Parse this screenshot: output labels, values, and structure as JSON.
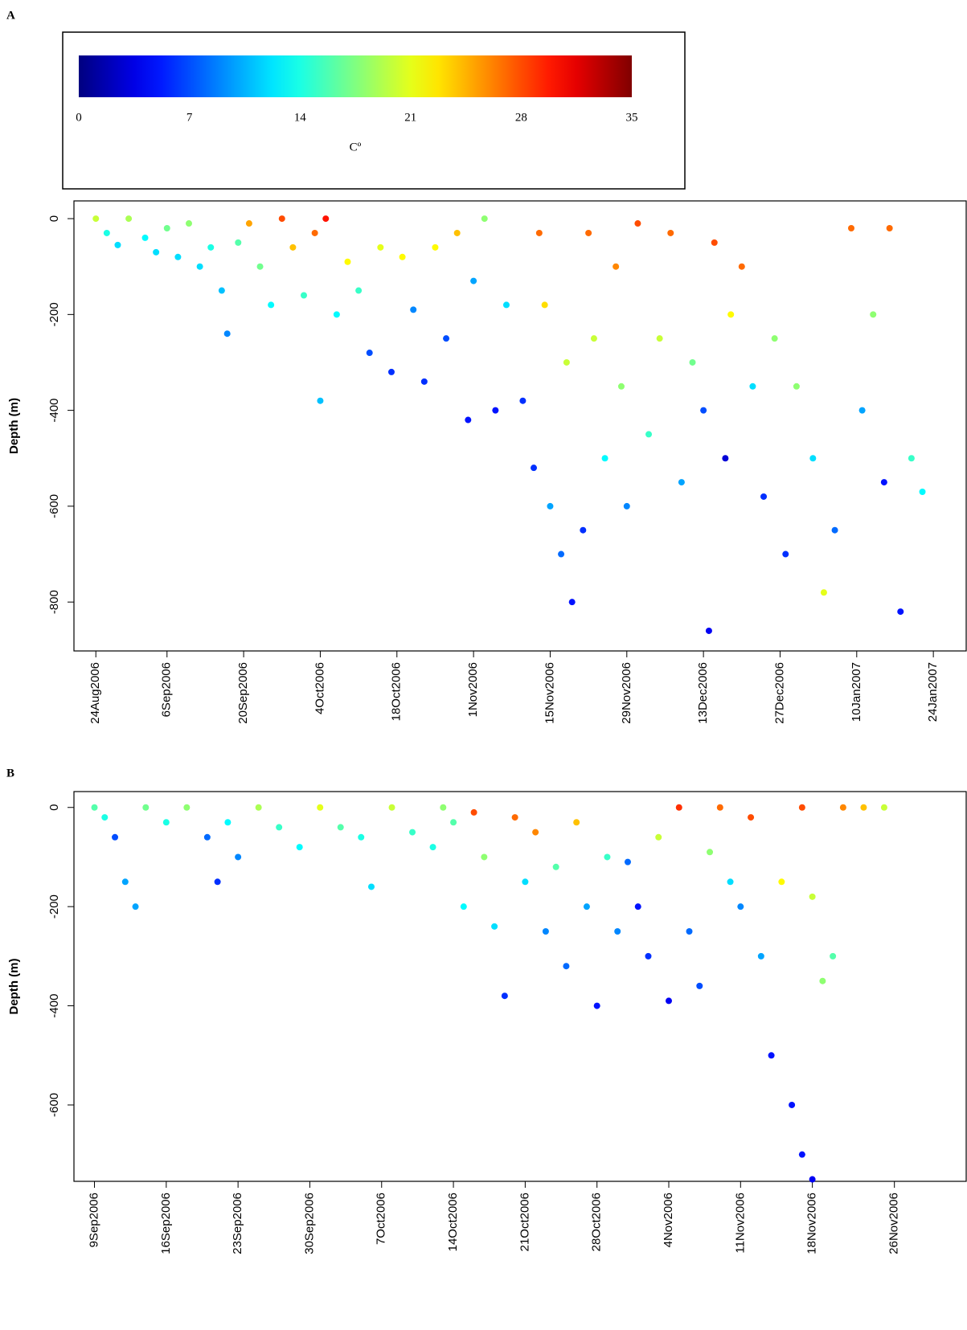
{
  "chart_data": [
    {
      "type": "scatter",
      "panel": "A",
      "ylabel": "Depth  (m)",
      "colorbar": {
        "label": "Cº",
        "clim": [
          0,
          35
        ],
        "ticks": [
          0,
          7,
          14,
          21,
          28,
          35
        ]
      },
      "xlim": [
        "2006-08-20",
        "2007-01-30"
      ],
      "ylim": [
        -902,
        37
      ],
      "yticks": [
        0,
        -200,
        -400,
        -600,
        -800
      ],
      "xticks": [
        {
          "value": "2006-08-24",
          "label": "24Aug2006"
        },
        {
          "value": "2006-09-06",
          "label": "6Sep2006"
        },
        {
          "value": "2006-09-20",
          "label": "20Sep2006"
        },
        {
          "value": "2006-10-04",
          "label": "4Oct2006"
        },
        {
          "value": "2006-10-18",
          "label": "18Oct2006"
        },
        {
          "value": "2006-11-01",
          "label": "1Nov2006"
        },
        {
          "value": "2006-11-15",
          "label": "15Nov2006"
        },
        {
          "value": "2006-11-29",
          "label": "29Nov2006"
        },
        {
          "value": "2006-12-13",
          "label": "13Dec2006"
        },
        {
          "value": "2006-12-27",
          "label": "27Dec2006"
        },
        {
          "value": "2007-01-10",
          "label": "10Jan2007"
        },
        {
          "value": "2007-01-24",
          "label": "24Jan2007"
        }
      ],
      "x": [
        "2006-08-24",
        "2006-08-26",
        "2006-08-28",
        "2006-08-30",
        "2006-09-02",
        "2006-09-04",
        "2006-09-06",
        "2006-09-08",
        "2006-09-10",
        "2006-09-12",
        "2006-09-14",
        "2006-09-16",
        "2006-09-17",
        "2006-09-19",
        "2006-09-21",
        "2006-09-23",
        "2006-09-25",
        "2006-09-27",
        "2006-09-29",
        "2006-10-01",
        "2006-10-03",
        "2006-10-04",
        "2006-10-05",
        "2006-10-07",
        "2006-10-09",
        "2006-10-11",
        "2006-10-13",
        "2006-10-15",
        "2006-10-17",
        "2006-10-19",
        "2006-10-21",
        "2006-10-23",
        "2006-10-25",
        "2006-10-27",
        "2006-10-29",
        "2006-10-31",
        "2006-11-01",
        "2006-11-03",
        "2006-11-05",
        "2006-11-07",
        "2006-11-10",
        "2006-11-12",
        "2006-11-13",
        "2006-11-14",
        "2006-11-15",
        "2006-11-17",
        "2006-11-18",
        "2006-11-19",
        "2006-11-21",
        "2006-11-22",
        "2006-11-23",
        "2006-11-25",
        "2006-11-27",
        "2006-11-28",
        "2006-11-29",
        "2006-12-01",
        "2006-12-03",
        "2006-12-05",
        "2006-12-07",
        "2006-12-09",
        "2006-12-11",
        "2006-12-13",
        "2006-12-14",
        "2006-12-15",
        "2006-12-17",
        "2006-12-18",
        "2006-12-20",
        "2006-12-22",
        "2006-12-24",
        "2006-12-26",
        "2006-12-28",
        "2006-12-30",
        "2007-01-02",
        "2007-01-04",
        "2007-01-06",
        "2007-01-09",
        "2007-01-11",
        "2007-01-13",
        "2007-01-15",
        "2007-01-16",
        "2007-01-18",
        "2007-01-20",
        "2007-01-22"
      ],
      "y": [
        0,
        -30,
        -55,
        0,
        -40,
        -70,
        -20,
        -80,
        -10,
        -100,
        -60,
        -150,
        -240,
        -50,
        -10,
        -100,
        -180,
        0,
        -60,
        -160,
        -30,
        -380,
        0,
        -200,
        -90,
        -150,
        -280,
        -60,
        -320,
        -80,
        -190,
        -340,
        -60,
        -250,
        -30,
        -420,
        -130,
        0,
        -400,
        -180,
        -380,
        -520,
        -30,
        -180,
        -600,
        -700,
        -300,
        -800,
        -650,
        -30,
        -250,
        -500,
        -100,
        -350,
        -600,
        -10,
        -450,
        -250,
        -30,
        -550,
        -300,
        -400,
        -860,
        -50,
        -500,
        -200,
        -100,
        -350,
        -580,
        -250,
        -700,
        -350,
        -500,
        -780,
        -650,
        -20,
        -400,
        -200,
        -550,
        -20,
        -820,
        -500,
        -570
      ],
      "temperature": [
        20,
        14,
        12,
        19,
        13,
        12,
        17,
        12,
        18,
        12,
        14,
        11,
        9,
        16,
        25,
        17,
        13,
        28,
        24,
        15,
        27,
        11,
        30,
        13,
        22,
        15,
        7,
        21,
        6,
        22,
        9,
        6,
        22,
        7,
        24,
        5,
        10,
        18,
        5,
        12,
        6,
        6,
        27,
        23,
        10,
        8,
        20,
        5,
        6,
        27,
        20,
        13,
        26,
        18,
        9,
        28,
        15,
        20,
        27,
        10,
        17,
        7,
        4,
        28,
        3,
        22,
        27,
        12,
        6,
        18,
        6,
        18,
        12,
        21,
        8,
        27,
        10,
        18,
        5,
        27,
        5,
        15,
        13
      ]
    },
    {
      "type": "scatter",
      "panel": "B",
      "ylabel": "Depth  (m)",
      "xlim": [
        "2006-09-07",
        "2006-12-03"
      ],
      "ylim": [
        -754,
        32
      ],
      "yticks": [
        0,
        -200,
        -400,
        -600
      ],
      "xticks": [
        {
          "value": "2006-09-09",
          "label": "9Sep2006"
        },
        {
          "value": "2006-09-16",
          "label": "16Sep2006"
        },
        {
          "value": "2006-09-23",
          "label": "23Sep2006"
        },
        {
          "value": "2006-09-30",
          "label": "30Sep2006"
        },
        {
          "value": "2006-10-07",
          "label": "7Oct2006"
        },
        {
          "value": "2006-10-14",
          "label": "14Oct2006"
        },
        {
          "value": "2006-10-21",
          "label": "21Oct2006"
        },
        {
          "value": "2006-10-28",
          "label": "28Oct2006"
        },
        {
          "value": "2006-11-04",
          "label": "4Nov2006"
        },
        {
          "value": "2006-11-11",
          "label": "11Nov2006"
        },
        {
          "value": "2006-11-18",
          "label": "18Nov2006"
        },
        {
          "value": "2006-11-26",
          "label": "26Nov2006"
        }
      ],
      "x": [
        "2006-09-09",
        "2006-09-10",
        "2006-09-11",
        "2006-09-12",
        "2006-09-13",
        "2006-09-14",
        "2006-09-16",
        "2006-09-18",
        "2006-09-20",
        "2006-09-21",
        "2006-09-22",
        "2006-09-23",
        "2006-09-25",
        "2006-09-27",
        "2006-09-29",
        "2006-10-01",
        "2006-10-03",
        "2006-10-05",
        "2006-10-06",
        "2006-10-08",
        "2006-10-10",
        "2006-10-12",
        "2006-10-13",
        "2006-10-14",
        "2006-10-15",
        "2006-10-16",
        "2006-10-17",
        "2006-10-18",
        "2006-10-19",
        "2006-10-20",
        "2006-10-21",
        "2006-10-22",
        "2006-10-23",
        "2006-10-24",
        "2006-10-25",
        "2006-10-26",
        "2006-10-27",
        "2006-10-28",
        "2006-10-29",
        "2006-10-30",
        "2006-10-31",
        "2006-11-01",
        "2006-11-02",
        "2006-11-03",
        "2006-11-04",
        "2006-11-05",
        "2006-11-06",
        "2006-11-07",
        "2006-11-08",
        "2006-11-09",
        "2006-11-10",
        "2006-11-11",
        "2006-11-12",
        "2006-11-13",
        "2006-11-14",
        "2006-11-15",
        "2006-11-16",
        "2006-11-17",
        "2006-11-17",
        "2006-11-18",
        "2006-11-18",
        "2006-11-19",
        "2006-11-20",
        "2006-11-21",
        "2006-11-23",
        "2006-11-25"
      ],
      "y": [
        0,
        -20,
        -60,
        -150,
        -200,
        0,
        -30,
        0,
        -60,
        -150,
        -30,
        -100,
        0,
        -40,
        -80,
        0,
        -40,
        -60,
        -160,
        0,
        -50,
        -80,
        0,
        -30,
        -200,
        -10,
        -100,
        -240,
        -380,
        -20,
        -150,
        -50,
        -250,
        -120,
        -320,
        -30,
        -200,
        -400,
        -100,
        -250,
        -110,
        -200,
        -300,
        -60,
        -390,
        0,
        -250,
        -360,
        -90,
        0,
        -150,
        -200,
        -20,
        -300,
        -500,
        -150,
        -600,
        0,
        -700,
        -180,
        -750,
        -350,
        -300,
        0,
        0,
        0
      ],
      "temperature": [
        16,
        14,
        7,
        10,
        10,
        17,
        14,
        18,
        8,
        6,
        13,
        9,
        19,
        15,
        13,
        21,
        16,
        14,
        12,
        20,
        15,
        14,
        18,
        16,
        13,
        28,
        18,
        12,
        6,
        27,
        12,
        26,
        9,
        16,
        8,
        24,
        10,
        5,
        15,
        9,
        8,
        5,
        6,
        20,
        4,
        29,
        8,
        7,
        18,
        27,
        12,
        9,
        28,
        10,
        5,
        22,
        5,
        28,
        5,
        20,
        4,
        18,
        16,
        26,
        24,
        20
      ]
    }
  ]
}
